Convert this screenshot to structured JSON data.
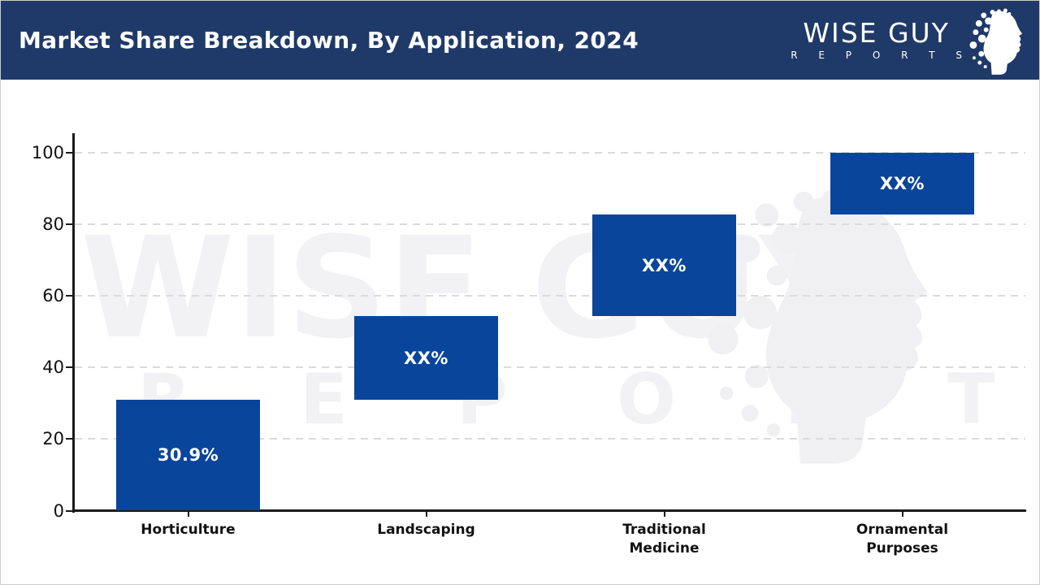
{
  "header": {
    "title": "Market Share Breakdown, By Application, 2024",
    "logo": {
      "line1": "WISE GUY",
      "line2": "R E P O R T S"
    }
  },
  "watermark": {
    "line1": "WISE GUY",
    "line2": "R E P O R T S"
  },
  "chart_data": {
    "type": "waterfall",
    "title": "Market Share Breakdown, By Application, 2024",
    "categories": [
      "Horticulture",
      "Landscaping",
      "Traditional Medicine",
      "Ornamental Purposes"
    ],
    "segments": [
      {
        "category": "Horticulture",
        "start": 0,
        "end": 30.9,
        "label": "30.9%"
      },
      {
        "category": "Landscaping",
        "start": 30.9,
        "end": 54.2,
        "label": "XX%"
      },
      {
        "category": "Traditional Medicine",
        "start": 54.2,
        "end": 82.6,
        "label": "XX%"
      },
      {
        "category": "Ornamental Purposes",
        "start": 82.6,
        "end": 100,
        "label": "XX%"
      }
    ],
    "y_ticks": [
      0,
      20,
      40,
      60,
      80,
      100
    ],
    "ylim": [
      0,
      100
    ],
    "grid": "dashed-horizontal",
    "legend": "none",
    "bar_color": "#0A459C",
    "value_label_color": "#FFFFFF"
  },
  "colors": {
    "header_bg": "#1F3A68",
    "bar": "#0A459C",
    "grid": "#DBDBDB",
    "axis": "#1A1A1A",
    "watermark": "#F2F2F4",
    "frame_border": "#CCCCCC"
  }
}
